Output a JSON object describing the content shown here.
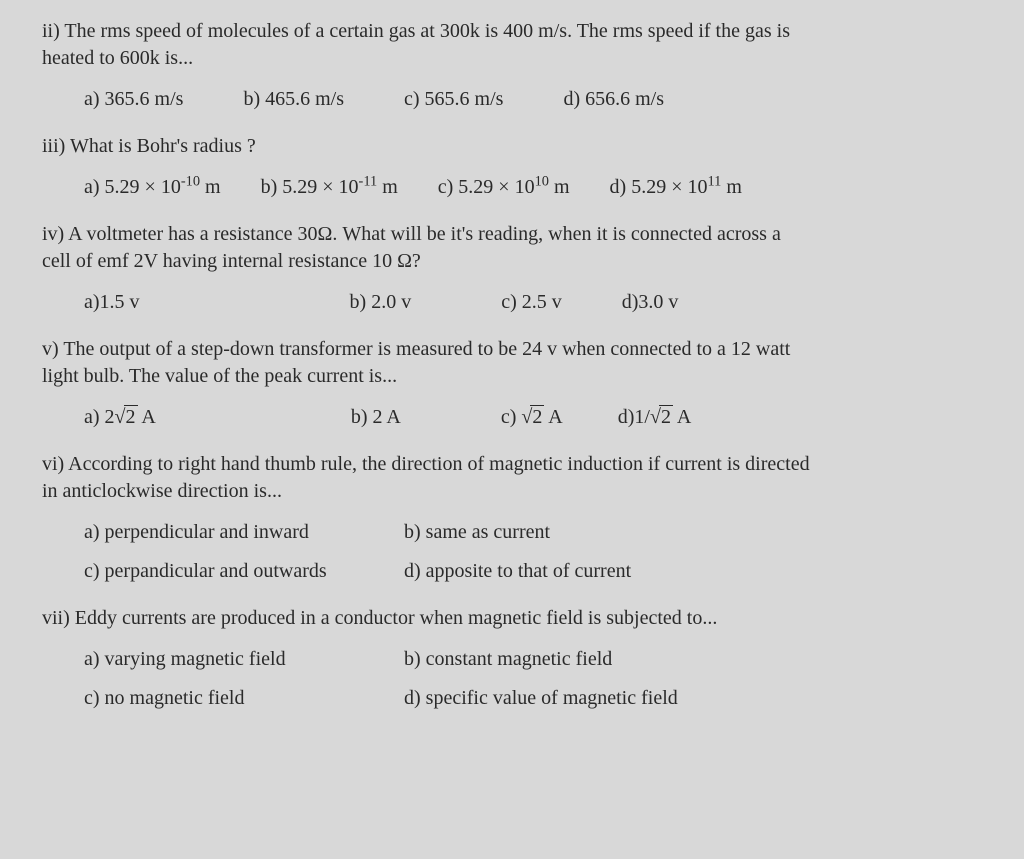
{
  "questions": {
    "ii": {
      "roman": "ii)",
      "text_line1": "The rms speed of molecules of a certain gas at 300k is 400 m/s. The rms speed if the gas is",
      "text_line2": "heated to 600k is...",
      "options": {
        "a": "a)  365.6 m/s",
        "b": "b) 465.6 m/s",
        "c": "c) 565.6 m/s",
        "d": "d) 656.6 m/s"
      }
    },
    "iii": {
      "roman": "iii)",
      "text": "What is Bohr's radius ?",
      "options": {
        "a_pre": "a)  5.29 × 10",
        "a_exp": "-10",
        "a_post": " m",
        "b_pre": "b) 5.29 × 10",
        "b_exp": "-11",
        "b_post": " m",
        "c_pre": "c) 5.29 × 10",
        "c_exp": "10",
        "c_post": " m",
        "d_pre": "d) 5.29 × 10",
        "d_exp": "11",
        "d_post": " m"
      }
    },
    "iv": {
      "roman": "iv)",
      "text_line1": "A voltmeter has a resistance 30Ω. What will be it's reading, when it is connected across a",
      "text_line2": "cell of emf 2V having internal resistance 10 Ω?",
      "options": {
        "a": "a)1.5 v",
        "b": "b) 2.0 v",
        "c": "c) 2.5 v",
        "d": "d)3.0 v"
      }
    },
    "v": {
      "roman": "v)",
      "text_line1": "The output of a step-down transformer is measured to be 24 v when connected to a 12 watt",
      "text_line2": "light bulb. The value of the peak current is...",
      "options": {
        "a_pre": "a) 2",
        "a_radicand": "2",
        "a_post": " A",
        "b": "b) 2 A",
        "c_pre": "c) ",
        "c_radicand": "2",
        "c_post": " A",
        "d_pre": "d)1/",
        "d_radicand": "2",
        "d_post": " A"
      }
    },
    "vi": {
      "roman": "vi)",
      "text_line1": "According to right hand thumb rule, the direction of magnetic induction if current is directed",
      "text_line2": "in anticlockwise direction is...",
      "options": {
        "a": "a) perpendicular and inward",
        "b": "b) same as current",
        "c": "c) perpandicular and outwards",
        "d": "d) apposite to that of current"
      }
    },
    "vii": {
      "roman": "vii)",
      "text": "Eddy currents are produced in a conductor when magnetic field is subjected to...",
      "options": {
        "a": "a) varying magnetic field",
        "b": "b) constant magnetic field",
        "c": "c) no magnetic field",
        "d": "d) specific value of magnetic field"
      }
    }
  }
}
